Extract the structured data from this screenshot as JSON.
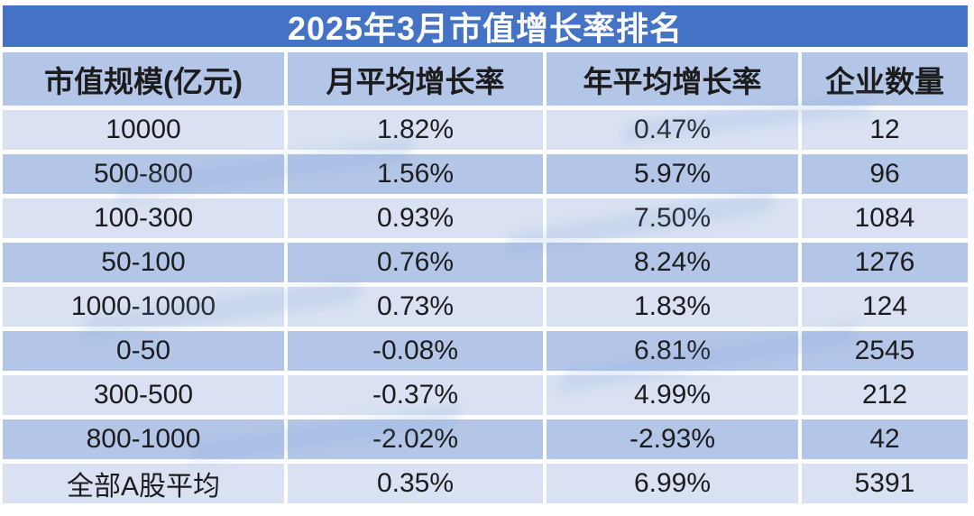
{
  "title": "2025年3月市值增长率排名",
  "colors": {
    "title_bar": "#4472C4",
    "title_text": "#FFFFFF",
    "header_row": "#B4C6E7",
    "band_light": "#D9E1F2",
    "band_dark": "#B4C6E7",
    "cell_text": "#1C1C1E"
  },
  "chart_data": {
    "type": "table",
    "title": "2025年3月市值增长率排名",
    "columns": [
      "市值规模(亿元)",
      "月平均增长率",
      "年平均增长率",
      "企业数量"
    ],
    "rows": [
      [
        "10000",
        "1.82%",
        "0.47%",
        "12"
      ],
      [
        "500-800",
        "1.56%",
        "5.97%",
        "96"
      ],
      [
        "100-300",
        "0.93%",
        "7.50%",
        "1084"
      ],
      [
        "50-100",
        "0.76%",
        "8.24%",
        "1276"
      ],
      [
        "1000-10000",
        "0.73%",
        "1.83%",
        "124"
      ],
      [
        "0-50",
        "-0.08%",
        "6.81%",
        "2545"
      ],
      [
        "300-500",
        "-0.37%",
        "4.99%",
        "212"
      ],
      [
        "800-1000",
        "-2.02%",
        "-2.93%",
        "42"
      ],
      [
        "全部A股平均",
        "0.35%",
        "6.99%",
        "5391"
      ]
    ],
    "layout": {
      "banding": "alternating rows light/dark starting light",
      "alignment": "all cells centered",
      "grid": "white gaps between cells"
    }
  }
}
